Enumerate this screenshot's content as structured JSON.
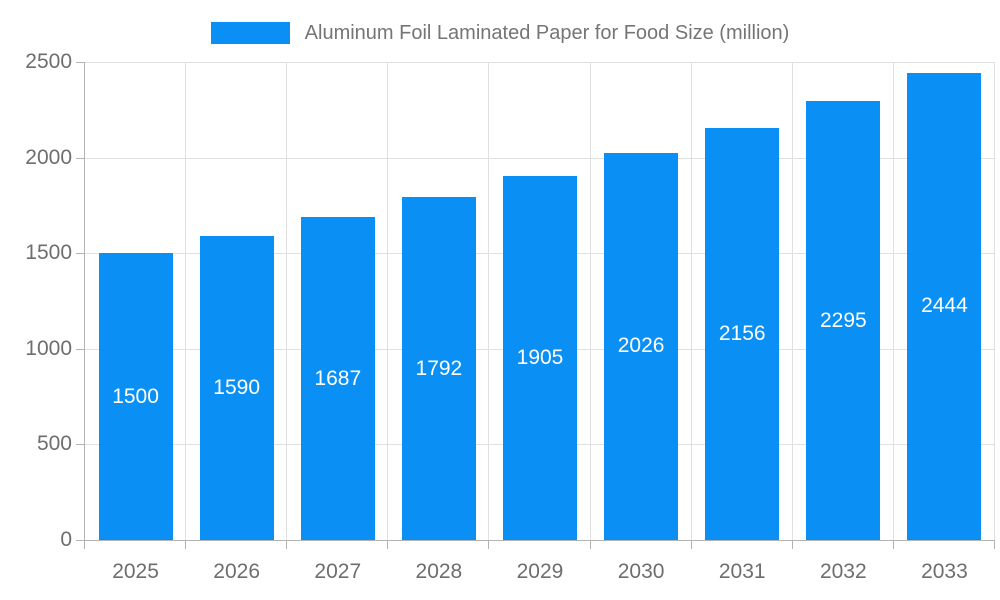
{
  "chart_data": {
    "type": "bar",
    "title": "Aluminum Foil Laminated Paper for Food Size (million)",
    "legend": "Aluminum Foil Laminated Paper for Food Size (million)",
    "categories": [
      "2025",
      "2026",
      "2027",
      "2028",
      "2029",
      "2030",
      "2031",
      "2032",
      "2033"
    ],
    "values": [
      1500,
      1590,
      1687,
      1792,
      1905,
      2026,
      2156,
      2295,
      2444
    ],
    "xlabel": "",
    "ylabel": "",
    "ylim": [
      0,
      2500
    ],
    "yticks": [
      0,
      500,
      1000,
      1500,
      2000,
      2500
    ],
    "grid": true,
    "legend_position": "top-center",
    "colors": {
      "bar": "#0a90f5",
      "grid": "#e0e0e0",
      "axis": "#b3b3b3",
      "tick_text": "#6e6e6e",
      "legend_text": "#757575",
      "value_label": "#ffffff",
      "background": "#ffffff"
    }
  }
}
